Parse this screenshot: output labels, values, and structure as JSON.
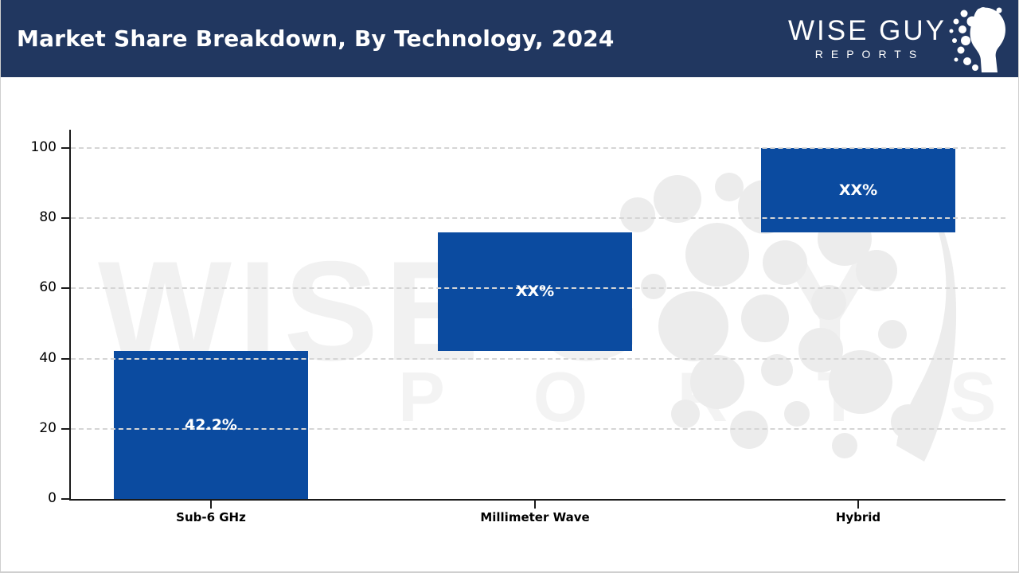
{
  "header": {
    "title": "Market Share Breakdown, By Technology, 2024",
    "brand_line1": "WISE GUY",
    "brand_line2": "REPORTS"
  },
  "watermark": {
    "line1_left": "WISE G",
    "line1_right": "Y",
    "line2": "R E P O R T S"
  },
  "chart_data": {
    "type": "bar",
    "variant": "stepped-waterfall",
    "title": "Market Share Breakdown, By Technology, 2024",
    "categories": [
      "Sub-6 GHz",
      "Millimeter Wave",
      "Hybrid"
    ],
    "segments": [
      {
        "category": "Sub-6 GHz",
        "start": 0,
        "end": 42.2,
        "value": 42.2,
        "label": "42.2%"
      },
      {
        "category": "Millimeter Wave",
        "start": 42.2,
        "end": 76.0,
        "value": 33.8,
        "label": "XX%"
      },
      {
        "category": "Hybrid",
        "start": 76.0,
        "end": 100.0,
        "value": 24.0,
        "label": "XX%"
      }
    ],
    "y_ticks": [
      0,
      20,
      40,
      60,
      80,
      100
    ],
    "ylim": [
      0,
      105
    ],
    "xlabel": "",
    "ylabel": "",
    "legend": null,
    "grid": {
      "horizontal": true,
      "style": "dashed"
    },
    "colors": {
      "bar": "#0B4BA0",
      "grid": "#d5d5d5",
      "axis": "#1a1a1a",
      "header_bg": "#213760",
      "bar_label": "#ffffff",
      "tick_label": "#000000"
    }
  }
}
